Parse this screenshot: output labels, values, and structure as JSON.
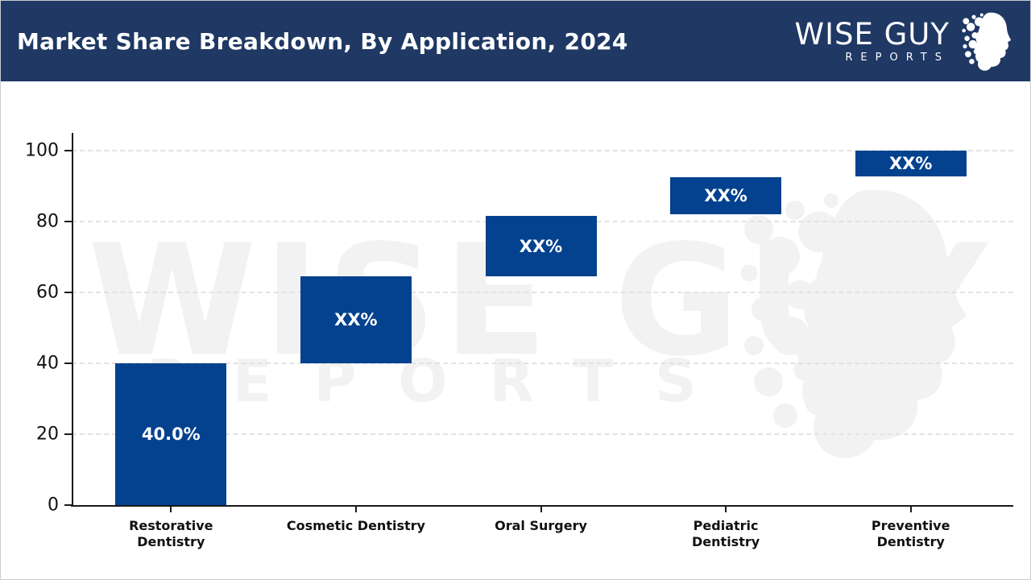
{
  "header": {
    "title": "Market Share Breakdown, By Application, 2024",
    "logo": {
      "line1": "WISE GUY",
      "line2": "REPORTS"
    }
  },
  "watermark": {
    "line1": "WISE GUY",
    "line2": "REPORTS"
  },
  "colors": {
    "header_bg": "#1F3864",
    "bar": "#04428F",
    "bar_label": "#FFFFFF",
    "gridline": "#E2E2E2",
    "axis": "#1A1A1A",
    "watermark": "#F2F2F2"
  },
  "chart_data": {
    "type": "bar",
    "subtype": "waterfall",
    "title": "Market Share Breakdown, By Application, 2024",
    "categories": [
      [
        "Restorative",
        "Dentistry"
      ],
      [
        "Cosmetic Dentistry"
      ],
      [
        "Oral Surgery"
      ],
      [
        "Pediatric",
        "Dentistry"
      ],
      [
        "Preventive",
        "Dentistry"
      ]
    ],
    "bars": [
      {
        "category": "Restorative Dentistry",
        "start": 0,
        "end": 40,
        "label": "40.0%"
      },
      {
        "category": "Cosmetic Dentistry",
        "start": 40,
        "end": 64.5,
        "label": "XX%"
      },
      {
        "category": "Oral Surgery",
        "start": 64.5,
        "end": 81.5,
        "label": "XX%"
      },
      {
        "category": "Pediatric Dentistry",
        "start": 82,
        "end": 92.5,
        "label": "XX%"
      },
      {
        "category": "Preventive Dentistry",
        "start": 92.8,
        "end": 100,
        "label": "XX%"
      }
    ],
    "ylabel": "",
    "xlabel": "",
    "y_ticks": [
      0,
      20,
      40,
      60,
      80,
      100
    ],
    "ylim": [
      0,
      105
    ],
    "grid": "horizontal-dashed",
    "legend": "none"
  }
}
